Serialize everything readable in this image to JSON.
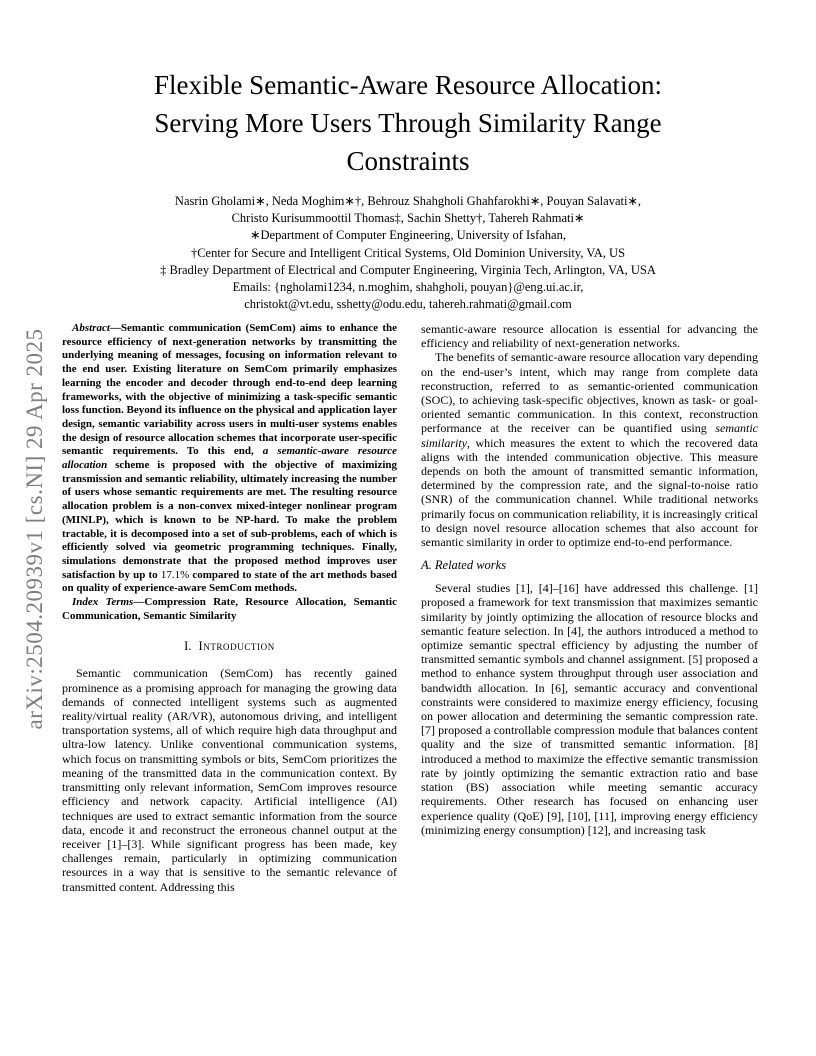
{
  "watermark": {
    "text": "arXiv:2504.20939v1  [cs.NI]  29 Apr 2025",
    "color": "#7e7e7e"
  },
  "title": {
    "line1": "Flexible Semantic-Aware Resource Allocation:",
    "line2": "Serving More Users Through Similarity Range",
    "line3": "Constraints"
  },
  "authors": {
    "line1": "Nasrin Gholami∗, Neda Moghim∗†, Behrouz Shahgholi Ghahfarokhi∗, Pouyan Salavati∗,",
    "line2": "Christo Kurisummoottil Thomas‡, Sachin Shetty†, Tahereh Rahmati∗",
    "affil1": "∗Department of Computer Engineering, University of Isfahan,",
    "affil2": "†Center for Secure and Intelligent Critical Systems, Old Dominion University, VA, US",
    "affil3": "‡ Bradley Department of Electrical and Computer Engineering, Virginia Tech, Arlington, VA, USA",
    "email1": "Emails: {ngholami1234, n.moghim, shahgholi, pouyan}@eng.ui.ac.ir,",
    "email2": "christokt@vt.edu, sshetty@odu.edu, tahereh.rahmati@gmail.com"
  },
  "abstract": {
    "lead": "Abstract",
    "body1": "—Semantic communication (SemCom) aims to enhance the resource efficiency of next-generation networks by transmitting the underlying meaning of messages, focusing on information relevant to the end user. Existing literature on SemCom primarily emphasizes learning the encoder and decoder through end-to-end deep learning frameworks, with the objective of minimizing a task-specific semantic loss function. Beyond its influence on the physical and application layer design, semantic variability across users in multi-user systems enables the design of resource allocation schemes that incorporate user-specific semantic requirements. To this end, ",
    "emph": "a semantic-aware resource allocation",
    "body2": " scheme is proposed with the objective of maximizing transmission and semantic reliability, ultimately increasing the number of users whose semantic requirements are met. The resulting resource allocation problem is a non-convex mixed-integer nonlinear program (MINLP), which is known to be NP-hard. To make the problem tractable, it is decomposed into a set of sub-problems, each of which is efficiently solved via geometric programming techniques. Finally, simulations demonstrate that the proposed method improves user satisfaction by up to ",
    "value": "17.1%",
    "body3": " compared to state of the art methods based on quality of experience-aware SemCom methods."
  },
  "index_terms": {
    "lead": "Index Terms",
    "body": "—Compression Rate, Resource Allocation, Semantic Communication, Semantic Similarity"
  },
  "introduction": {
    "heading_num": "I.",
    "heading_text": "Introduction",
    "para1": "Semantic communication (SemCom) has recently gained prominence as a promising approach for managing the growing data demands of connected intelligent systems such as augmented reality/virtual reality (AR/VR), autonomous driving, and intelligent transportation systems, all of which require high data throughput and ultra-low latency. Unlike conventional communication systems, which focus on transmitting symbols or bits, SemCom prioritizes the meaning of the transmitted data in the communication context. By transmitting only relevant information, SemCom improves resource efficiency and network capacity. Artificial intelligence (AI) techniques are used to extract semantic information from the source data, encode it and reconstruct the erroneous channel output at the receiver [1]–[3]. While significant progress has been made, key challenges remain, particularly in optimizing communication resources in a way that is sensitive to the semantic relevance of transmitted content. Addressing this",
    "para1_cont": "semantic-aware resource allocation is essential for advancing the efficiency and reliability of next-generation networks.",
    "para2_a": "The benefits of semantic-aware resource allocation vary depending on the end-user’s intent, which may range from complete data reconstruction, referred to as semantic-oriented communication (SOC), to achieving task-specific objectives, known as task- or goal-oriented semantic communication. In this context, reconstruction performance at the receiver can be quantified using ",
    "para2_em": "semantic similarity",
    "para2_b": ", which measures the extent to which the recovered data aligns with the intended communication objective. This measure depends on both the amount of transmitted semantic information, determined by the compression rate, and the signal-to-noise ratio (SNR) of the communication channel. While traditional networks primarily focus on communication reliability, it is increasingly critical to design novel resource allocation schemes that also account for semantic similarity in order to optimize end-to-end performance."
  },
  "related_works": {
    "heading": "A. Related works",
    "para": "Several studies [1], [4]–[16] have addressed this challenge. [1] proposed a framework for text transmission that maximizes semantic similarity by jointly optimizing the allocation of resource blocks and semantic feature selection. In [4], the authors introduced a method to optimize semantic spectral efficiency by adjusting the number of transmitted semantic symbols and channel assignment. [5] proposed a method to enhance system throughput through user association and bandwidth allocation. In [6], semantic accuracy and conventional constraints were considered to maximize energy efficiency, focusing on power allocation and determining the semantic compression rate. [7] proposed a controllable compression module that balances content quality and the size of transmitted semantic information. [8] introduced a method to maximize the effective semantic transmission rate by jointly optimizing the semantic extraction ratio and base station (BS) association while meeting semantic accuracy requirements. Other research has focused on enhancing user experience quality (QoE) [9], [10], [11], improving energy efficiency (minimizing energy consumption) [12], and increasing task"
  }
}
